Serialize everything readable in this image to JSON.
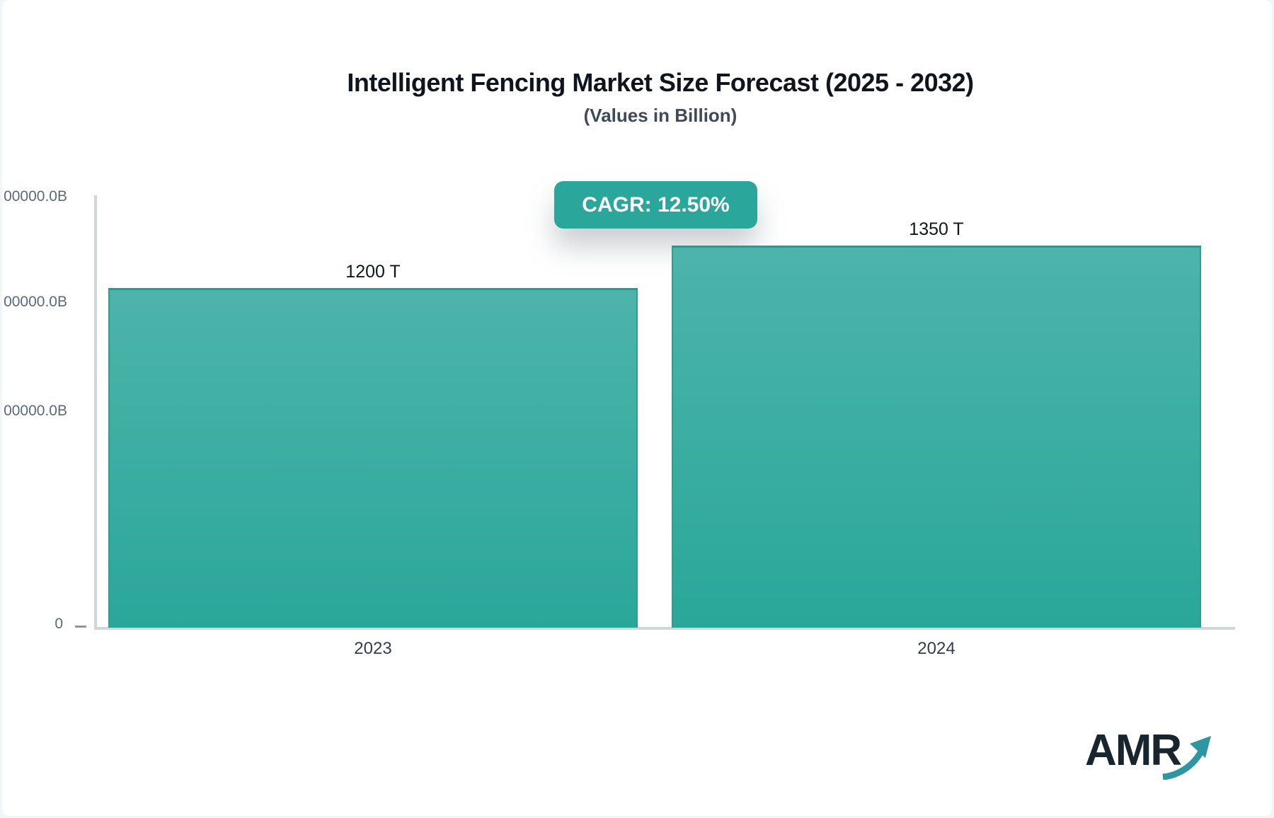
{
  "header": {
    "title": "Intelligent Fencing Market Size Forecast (2025 - 2032)",
    "subtitle": "(Values in Billion)"
  },
  "badge": {
    "label": "CAGR: 12.50%",
    "background": "#2aa79a",
    "text_color": "#ffffff"
  },
  "chart_data": {
    "type": "bar",
    "categories": [
      "2023",
      "2024"
    ],
    "values": [
      1200,
      1350
    ],
    "value_labels": [
      "1200 T",
      "1350 T"
    ],
    "title": "Intelligent Fencing Market Size Forecast (2025 - 2032)",
    "subtitle": "(Values in Billion)",
    "unit": "Billion",
    "cagr": "12.50%",
    "y_axis": {
      "tick_labels": [
        "00000.0B",
        "00000.0B",
        "00000.0B",
        "0"
      ],
      "note": "labels truncated at left viewport edge",
      "min": 0
    },
    "legend": "none",
    "grid": "off",
    "bar_color_top": "#4db4aa",
    "bar_color_bottom": "#2aa79a",
    "bar_border_color": "#2b9a8e",
    "axis_color": "#d2d6db"
  },
  "logo": {
    "text": "AMR",
    "icon": "trend-up-arrow-icon",
    "text_color": "#18242e",
    "arrow_color": "#2e96a0"
  }
}
